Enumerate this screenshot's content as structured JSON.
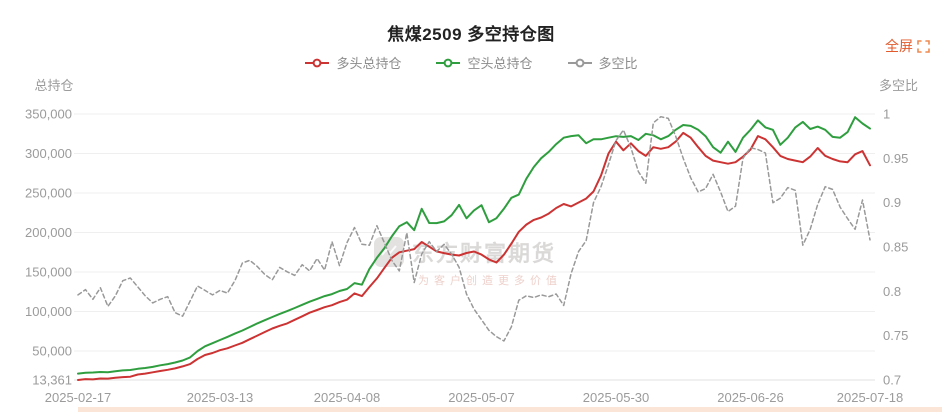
{
  "header": {
    "title": "焦煤2509 多空持仓图",
    "fullscreen_label": "全屏"
  },
  "legend": [
    {
      "label": "多头总持仓",
      "color": "#cc3333"
    },
    {
      "label": "空头总持仓",
      "color": "#2f9e3f"
    },
    {
      "label": "多空比",
      "color": "#999999"
    }
  ],
  "watermark": {
    "text": "东方财富期货",
    "subtext": "为客户创造更多价值"
  },
  "colors": {
    "long_line": "#cc3333",
    "short_line": "#2f9e3f",
    "ratio_line": "#999999",
    "gridline": "#efefef",
    "baseline": "#e2e2e2",
    "tick_text": "#9b9b9b",
    "fullscreen_text": "#e25a2b",
    "fullscreen_icon": "#ef8a50",
    "bottom_strip": "#fbe5d6"
  },
  "chart_data": {
    "type": "line",
    "title": "焦煤2509 多空持仓图",
    "grid": true,
    "legend_position": "top",
    "left_axis": {
      "name": "总持仓",
      "min": 13361,
      "max": 350000,
      "ticks": [
        {
          "v": 350000,
          "label": "350,000"
        },
        {
          "v": 300000,
          "label": "300,000"
        },
        {
          "v": 250000,
          "label": "250,000"
        },
        {
          "v": 200000,
          "label": "200,000"
        },
        {
          "v": 150000,
          "label": "150,000"
        },
        {
          "v": 100000,
          "label": "100,000"
        },
        {
          "v": 50000,
          "label": "50,000"
        },
        {
          "v": 13361,
          "label": "13,361"
        }
      ]
    },
    "right_axis": {
      "name": "多空比",
      "min": 0.7,
      "max": 1.0,
      "ticks": [
        {
          "v": 1.0,
          "label": "1"
        },
        {
          "v": 0.95,
          "label": "0.95"
        },
        {
          "v": 0.9,
          "label": "0.9"
        },
        {
          "v": 0.85,
          "label": "0.85"
        },
        {
          "v": 0.8,
          "label": "0.8"
        },
        {
          "v": 0.75,
          "label": "0.75"
        },
        {
          "v": 0.7,
          "label": "0.7"
        }
      ]
    },
    "x_axis": {
      "labels": [
        "2025-02-17",
        "2025-03-13",
        "2025-04-08",
        "2025-05-07",
        "2025-05-30",
        "2025-06-26",
        "2025-07-18"
      ],
      "label_indices": [
        0,
        19,
        36,
        54,
        72,
        90,
        106
      ]
    },
    "series": [
      {
        "name": "多头总持仓",
        "key": "long",
        "axis": "left",
        "style": "solid",
        "color": "#cc3333",
        "values": [
          13361,
          14520,
          14180,
          15320,
          15080,
          16240,
          17010,
          17530,
          20310,
          21480,
          23060,
          24790,
          26240,
          28010,
          30560,
          33480,
          39950,
          44980,
          47520,
          51030,
          53490,
          56980,
          60450,
          64980,
          69520,
          74060,
          78490,
          81980,
          85040,
          89510,
          93980,
          98520,
          101960,
          105490,
          108020,
          111970,
          115030,
          122980,
          119540,
          131020,
          141980,
          155040,
          167960,
          175020,
          176980,
          179040,
          187960,
          182030,
          176050,
          173980,
          172010,
          170960,
          174030,
          176020,
          172040,
          165980,
          162030,
          171960,
          185990,
          200960,
          209980,
          216030,
          219010,
          223970,
          230980,
          236040,
          233020,
          238050,
          242980,
          251960,
          272030,
          299980,
          314960,
          304030,
          312980,
          303040,
          296980,
          308010,
          305960,
          308040,
          315020,
          326030,
          319970,
          307960,
          297030,
          291020,
          288960,
          287040,
          289010,
          295980,
          305030,
          322040,
          317960,
          308030,
          296970,
          293040,
          291010,
          288980,
          296030,
          306980,
          297040,
          293020,
          289960,
          289040,
          298960,
          303020,
          285040
        ]
      },
      {
        "name": "空头总持仓",
        "key": "short",
        "axis": "left",
        "style": "solid",
        "color": "#2f9e3f",
        "values": [
          21480,
          22530,
          22790,
          23510,
          23240,
          24520,
          25490,
          26030,
          27540,
          28510,
          29980,
          31960,
          33520,
          35480,
          38030,
          41970,
          49960,
          56040,
          59980,
          64020,
          67960,
          72040,
          75980,
          80490,
          85030,
          88980,
          93040,
          96980,
          100520,
          104480,
          108530,
          112490,
          115970,
          119520,
          122040,
          125960,
          128510,
          135980,
          134020,
          153960,
          167980,
          180030,
          195040,
          207960,
          213030,
          202960,
          230040,
          212030,
          211960,
          214030,
          221980,
          234960,
          218040,
          227980,
          234520,
          213040,
          217960,
          229980,
          243960,
          248030,
          268040,
          282960,
          294030,
          301980,
          311960,
          320030,
          321980,
          323040,
          313030,
          317960,
          318040,
          320030,
          321960,
          320980,
          322030,
          317040,
          324960,
          323030,
          317960,
          321980,
          330030,
          336040,
          334960,
          330040,
          321960,
          308030,
          300980,
          314960,
          302030,
          319980,
          330040,
          341960,
          333030,
          329980,
          311040,
          319960,
          333030,
          339980,
          331040,
          334030,
          329960,
          321030,
          319980,
          327040,
          345960,
          337980,
          331520
        ]
      },
      {
        "name": "多空比",
        "key": "ratio",
        "axis": "right",
        "style": "dashed",
        "color": "#999999",
        "values": [
          0.796,
          0.802,
          0.791,
          0.804,
          0.783,
          0.795,
          0.812,
          0.815,
          0.805,
          0.795,
          0.787,
          0.791,
          0.794,
          0.776,
          0.772,
          0.789,
          0.806,
          0.801,
          0.796,
          0.801,
          0.798,
          0.812,
          0.832,
          0.835,
          0.828,
          0.819,
          0.813,
          0.827,
          0.822,
          0.818,
          0.83,
          0.823,
          0.837,
          0.824,
          0.856,
          0.829,
          0.855,
          0.872,
          0.853,
          0.852,
          0.874,
          0.855,
          0.835,
          0.823,
          0.866,
          0.81,
          0.842,
          0.856,
          0.845,
          0.853,
          0.842,
          0.827,
          0.797,
          0.78,
          0.768,
          0.756,
          0.749,
          0.744,
          0.76,
          0.79,
          0.795,
          0.793,
          0.796,
          0.794,
          0.797,
          0.784,
          0.82,
          0.845,
          0.857,
          0.9,
          0.918,
          0.943,
          0.97,
          0.982,
          0.962,
          0.935,
          0.922,
          0.99,
          0.997,
          0.995,
          0.975,
          0.95,
          0.928,
          0.912,
          0.916,
          0.932,
          0.912,
          0.89,
          0.896,
          0.95,
          0.962,
          0.96,
          0.956,
          0.9,
          0.905,
          0.917,
          0.914,
          0.852,
          0.87,
          0.898,
          0.918,
          0.915,
          0.895,
          0.882,
          0.87,
          0.903,
          0.858
        ]
      }
    ]
  }
}
